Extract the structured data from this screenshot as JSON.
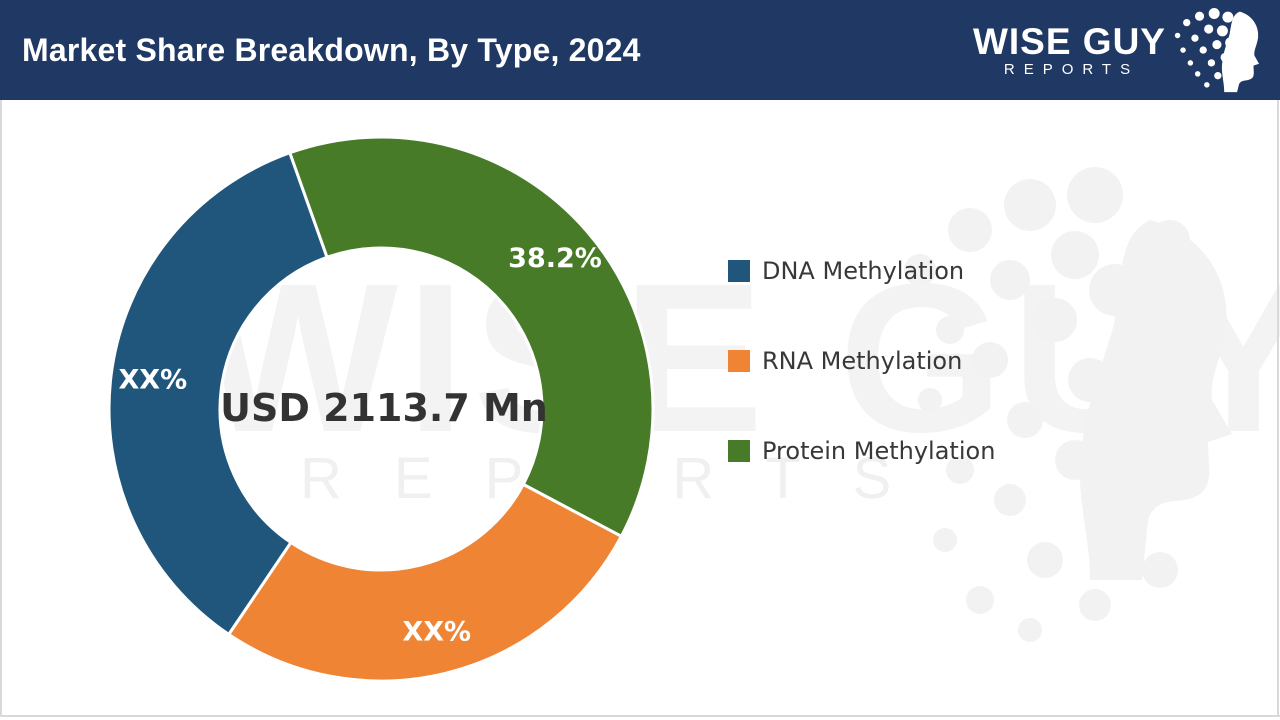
{
  "header": {
    "title": "Market Share Breakdown, By Type, 2024",
    "logo": {
      "line1": "WISE GUY",
      "line2": "REPORTS"
    }
  },
  "watermark": {
    "line1": "WISE GUY",
    "line2": "REPORTS"
  },
  "chart_data": {
    "type": "donut",
    "title": "Market Share Breakdown, By Type, 2024",
    "center_label": "USD 2113.7 Mn",
    "start_angle_deg": -19.6,
    "legend_position": "right",
    "slices": [
      {
        "label": "DNA Methylation",
        "value_pct": 35.1,
        "display_label": "XX%",
        "color": "#20567c"
      },
      {
        "label": "RNA Methylation",
        "value_pct": 26.7,
        "display_label": "XX%",
        "color": "#ee8434"
      },
      {
        "label": "Protein Methylation",
        "value_pct": 38.2,
        "display_label": "38.2%",
        "color": "#477b28"
      }
    ]
  },
  "colors": {
    "header_bg": "#1f3864",
    "text_dark": "#333333",
    "watermark": "#f3f3f3",
    "border": "#d9d9d9"
  }
}
